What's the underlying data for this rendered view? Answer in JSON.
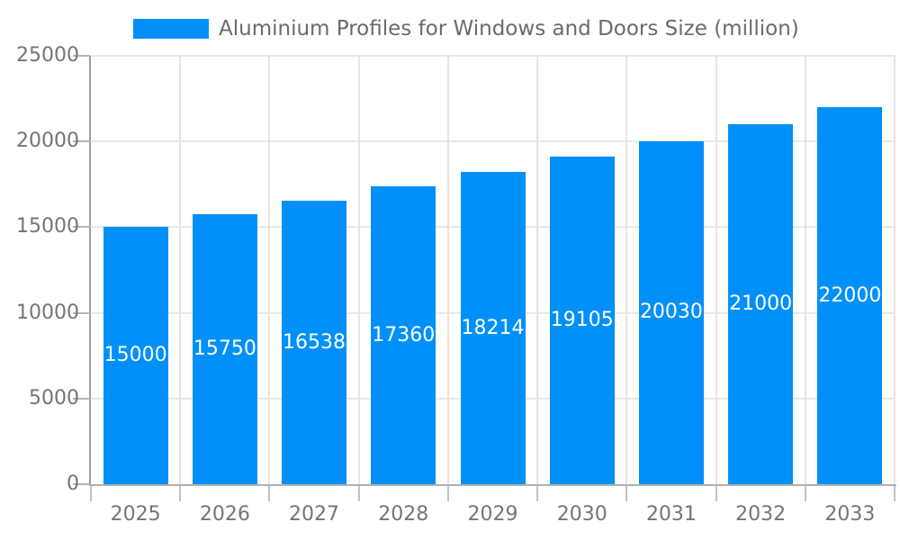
{
  "chart_data": {
    "type": "bar",
    "title": "Aluminium Profiles for Windows and Doors Size (million)",
    "legend_position": "top",
    "categories": [
      "2025",
      "2026",
      "2027",
      "2028",
      "2029",
      "2030",
      "2031",
      "2032",
      "2033"
    ],
    "values": [
      15000,
      15750,
      16538,
      17360,
      18214,
      19105,
      20030,
      21000,
      22000
    ],
    "bar_labels": [
      "15000",
      "15750",
      "16538",
      "17360",
      "18214",
      "19105",
      "20030",
      "21000",
      "22000"
    ],
    "xlabel": "",
    "ylabel": "",
    "ylim": [
      0,
      25000
    ],
    "yticks": [
      0,
      5000,
      10000,
      15000,
      20000,
      25000
    ],
    "ytick_labels": [
      "0",
      "5000",
      "10000",
      "15000",
      "20000",
      "25000"
    ],
    "grid": true,
    "colors": {
      "bar": "#0190f9",
      "bar_label_text": "#ffffff",
      "axis_y": "#9e9e9e",
      "axis_x": "#b0b0b0",
      "gridline": "#e6e6e6",
      "tick_text": "#757575",
      "title_text": "#6b6b6b"
    }
  }
}
